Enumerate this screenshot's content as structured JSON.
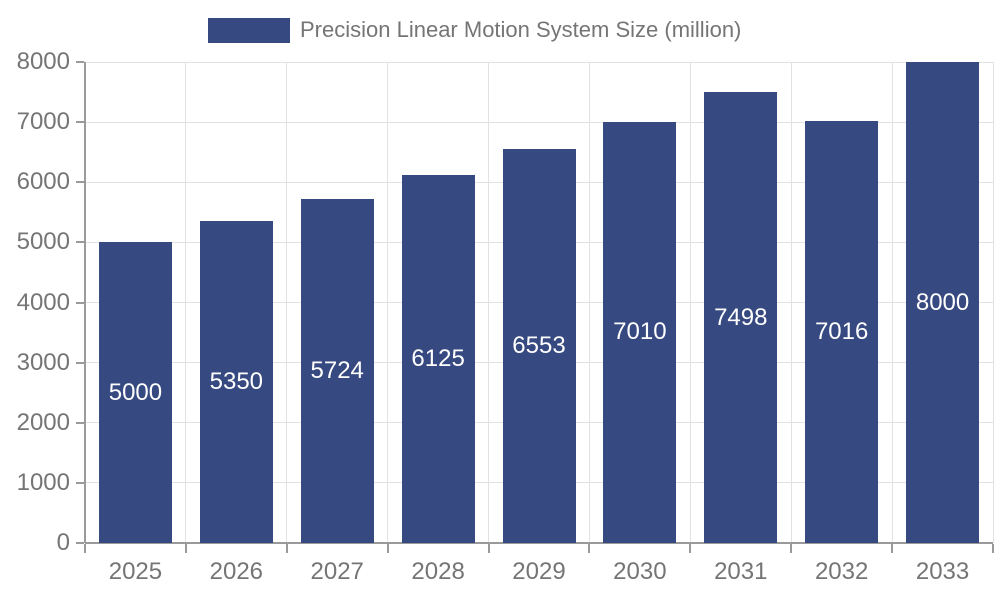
{
  "legend": {
    "label": "Precision Linear Motion System Size (million)"
  },
  "chart_data": {
    "type": "bar",
    "title": "Precision Linear Motion System Size (million)",
    "categories": [
      "2025",
      "2026",
      "2027",
      "2028",
      "2029",
      "2030",
      "2031",
      "2032",
      "2033"
    ],
    "values": [
      5000,
      5350,
      5724,
      6125,
      6553,
      7010,
      7498,
      7016,
      8000
    ],
    "xlabel": "",
    "ylabel": "",
    "ylim": [
      0,
      8000
    ],
    "ytick_step": 1000,
    "grid": true,
    "legend_position": "top",
    "value_labels_shown": true,
    "colors": {
      "bar": "#364980",
      "grid": "#e2e2e2",
      "axis": "#9a9a9a",
      "tick_text": "#757575",
      "value_label_text": "#ffffff"
    }
  }
}
